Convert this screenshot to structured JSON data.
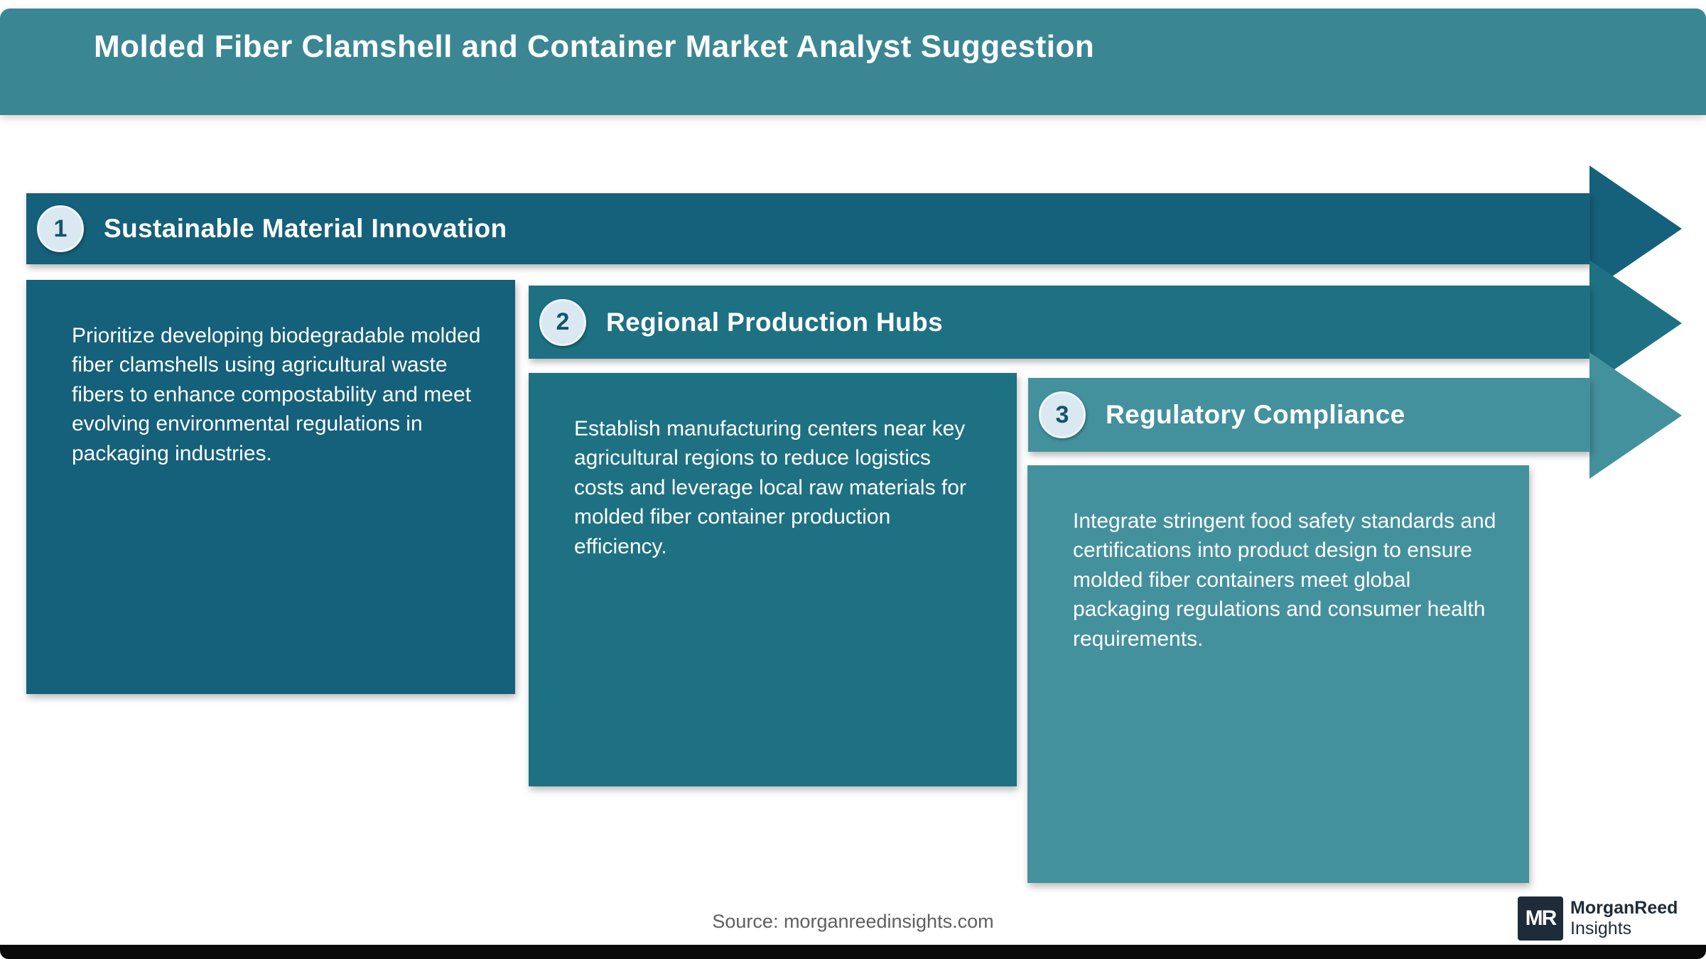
{
  "slide": {
    "title": "Molded Fiber Clamshell and Container Market Analyst Suggestion"
  },
  "steps": [
    {
      "number": "1",
      "title": "Sustainable Material Innovation",
      "description": "Prioritize developing biodegradable molded fiber clamshells using agricultural waste fibers to enhance compostability and meet evolving environmental regulations in packaging industries.",
      "color": "#15607a"
    },
    {
      "number": "2",
      "title": "Regional Production Hubs",
      "description": "Establish manufacturing centers near key agricultural regions to reduce logistics costs and leverage local raw materials for molded fiber container production efficiency.",
      "color": "#1e7183"
    },
    {
      "number": "3",
      "title": "Regulatory Compliance",
      "description": "Integrate stringent food safety standards and certifications into product design to ensure molded fiber containers meet global packaging regulations and consumer health requirements.",
      "color": "#44919e"
    }
  ],
  "footer": {
    "source": "Source: morganreedinsights.com"
  },
  "logo": {
    "monogram": "MR",
    "name": "MorganReed",
    "tagline": "Insights"
  },
  "colors": {
    "background": "#ffffff",
    "header": "#3a8793",
    "circle_fill": "#d9e8f1",
    "circle_number": "#14536b",
    "footer_text": "#5f5f5f",
    "logo_navy": "#1e2b39",
    "bottom_bar": "#0a0a0a"
  }
}
